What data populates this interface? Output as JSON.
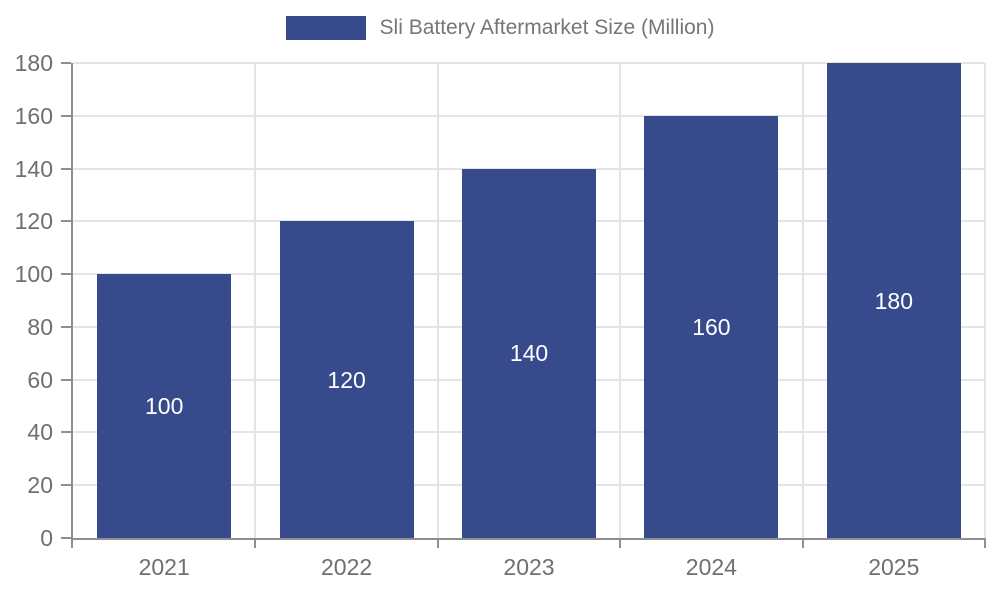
{
  "chart_data": {
    "type": "bar",
    "title": "Sli Battery Aftermarket Size (Million)",
    "categories": [
      "2021",
      "2022",
      "2023",
      "2024",
      "2025"
    ],
    "series": [
      {
        "name": "Sli Battery Aftermarket Size (Million)",
        "values": [
          100,
          120,
          140,
          160,
          180
        ]
      }
    ],
    "value_labels": [
      "100",
      "120",
      "140",
      "160",
      "180"
    ],
    "xlabel": "",
    "ylabel": "",
    "ylim": [
      0,
      180
    ],
    "yticks": [
      0,
      20,
      40,
      60,
      80,
      100,
      120,
      140,
      160,
      180
    ],
    "grid": true,
    "legend_position": "top-center",
    "colors": {
      "bar": "#374B8C",
      "grid": "#e4e4e4",
      "axis": "#8f8f8f",
      "tick_label": "#6f6f6f",
      "legend_text": "#767676",
      "value_label": "#ffffff",
      "background": "#ffffff"
    }
  },
  "legend": {
    "label": "Sli Battery Aftermarket Size (Million)"
  }
}
